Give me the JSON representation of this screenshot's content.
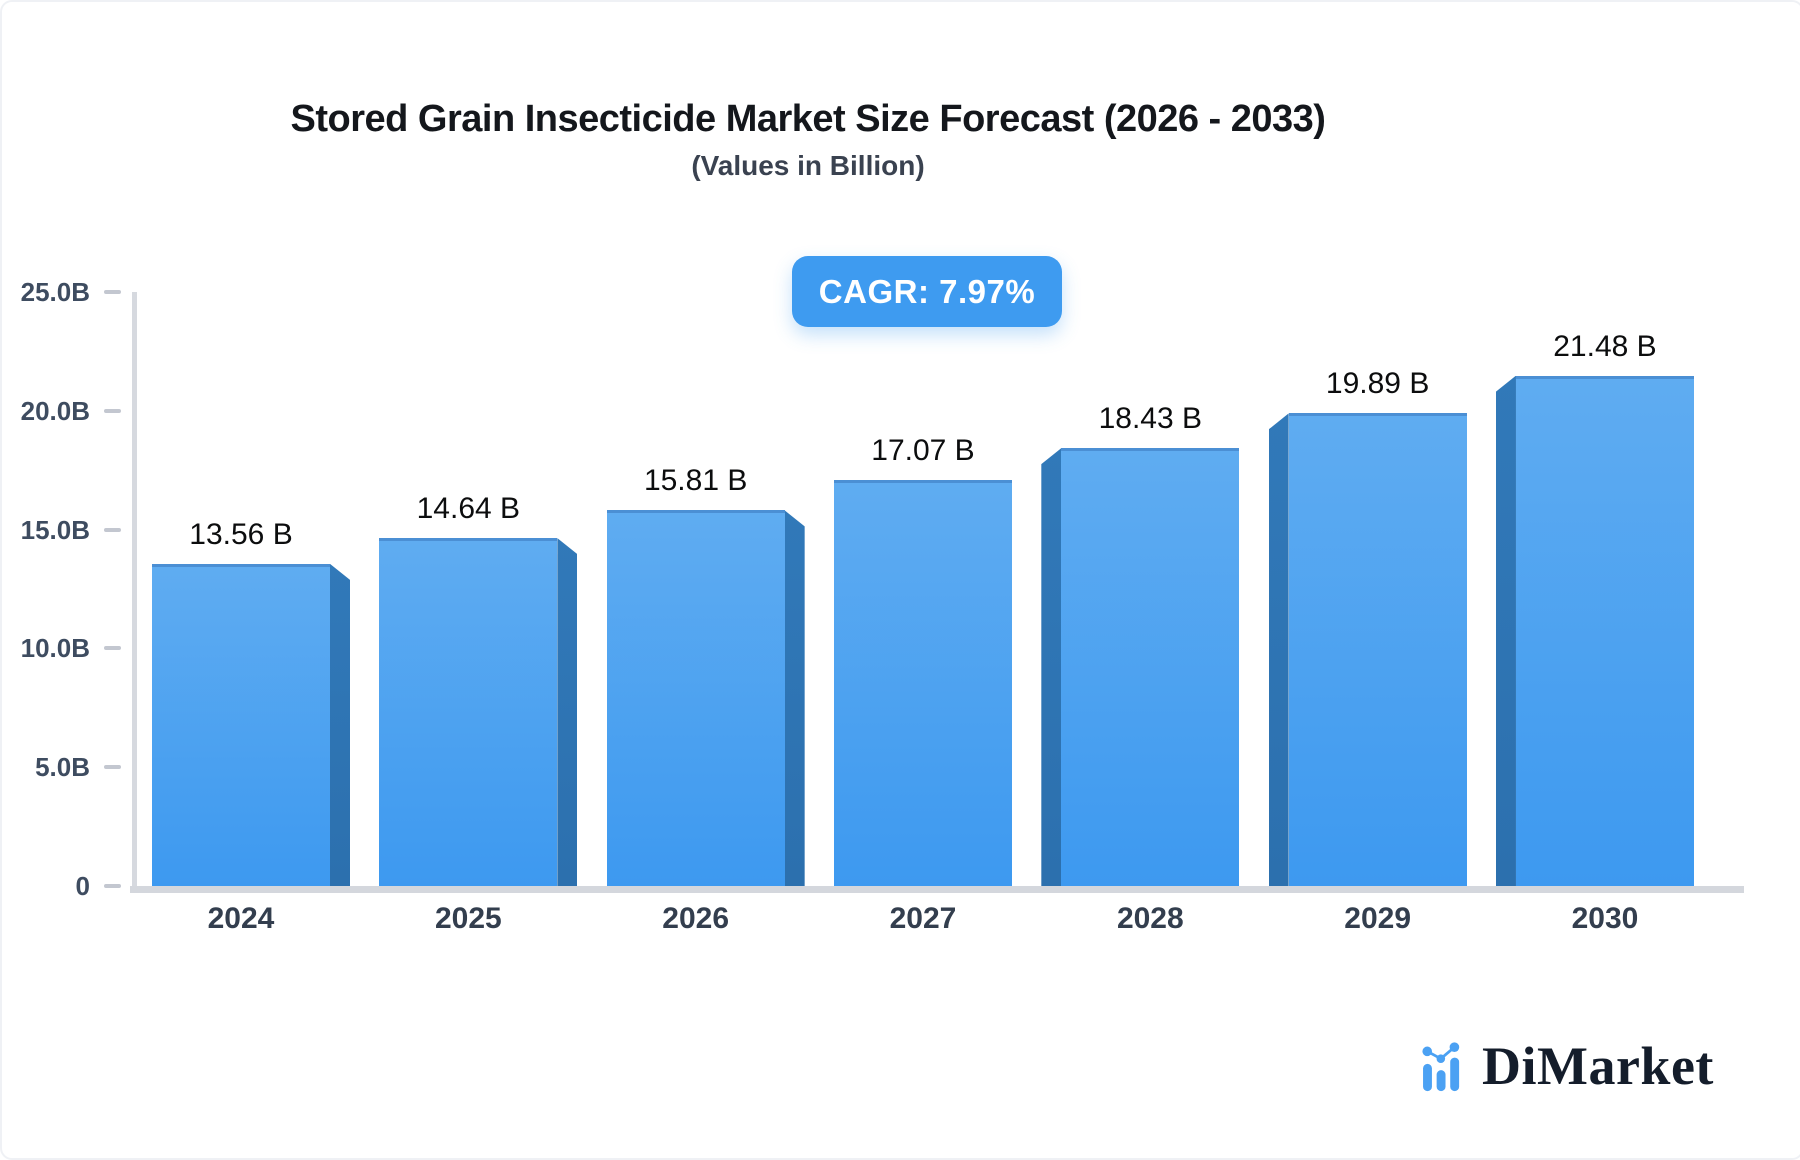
{
  "header": {
    "title": "Stored Grain Insecticide Market Size Forecast (2026 - 2033)",
    "subtitle": "(Values in Billion)",
    "cagr_badge": "CAGR: 7.97%",
    "badge_color": "#3e9bf0"
  },
  "chart_data": {
    "type": "bar",
    "title": "Stored Grain Insecticide Market Size Forecast (2026 - 2033)",
    "subtitle": "(Values in Billion)",
    "cagr": "7.97%",
    "categories": [
      "2024",
      "2025",
      "2026",
      "2027",
      "2028",
      "2029",
      "2030"
    ],
    "values": [
      13.56,
      14.64,
      15.81,
      17.07,
      18.43,
      19.89,
      21.48
    ],
    "value_labels": [
      "13.56 B",
      "14.64 B",
      "15.81 B",
      "17.07 B",
      "18.43 B",
      "19.89 B",
      "21.48 B"
    ],
    "y_ticks": [
      {
        "label": "25.0B",
        "value": 25
      },
      {
        "label": "20.0B",
        "value": 20
      },
      {
        "label": "15.0B",
        "value": 15
      },
      {
        "label": "10.0B",
        "value": 10
      },
      {
        "label": "5.0B",
        "value": 5
      },
      {
        "label": "0",
        "value": 0
      }
    ],
    "ylim": [
      0,
      25
    ],
    "xlabel": "",
    "ylabel": "",
    "grid": false,
    "legend": false,
    "bar_color_top": "#5facf1",
    "bar_color_bottom": "#3d99f0",
    "bar_side_color_top": "#3179b9",
    "bar_side_color_bottom": "#2c70ae"
  },
  "branding": {
    "name": "DiMarket",
    "icon": "bar-chart-logo-icon",
    "text_color": "#141d2b",
    "accent_color": "#4ba1f3"
  }
}
